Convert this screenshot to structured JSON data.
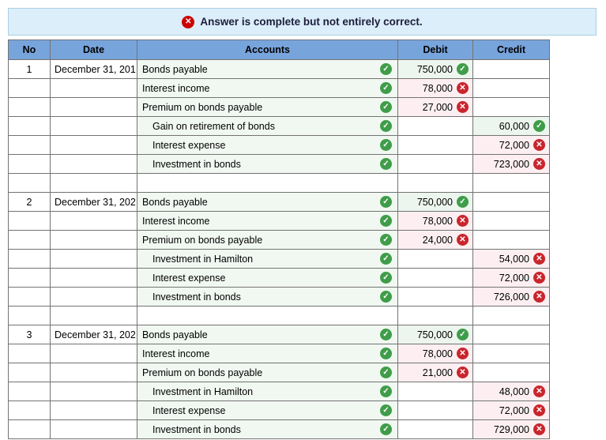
{
  "banner": {
    "text": "Answer is complete but not entirely correct."
  },
  "icons": {
    "correct": "✓",
    "incorrect": "✕"
  },
  "colors": {
    "banner_bg": "#dbeef9",
    "banner_border": "#a9d0e4",
    "banner_icon": "#cc0000",
    "header_bg": "#78a4dc",
    "account_bg": "#f1f8f2",
    "correct_bg": "#ecf5ee",
    "incorrect_bg": "#fdeff1",
    "correct_icon": "#3f9d49",
    "incorrect_icon": "#c9252d"
  },
  "table": {
    "headers": {
      "no": "No",
      "date": "Date",
      "accounts": "Accounts",
      "debit": "Debit",
      "credit": "Credit"
    },
    "rows": [
      {
        "no": "1",
        "date": "December 31, 201",
        "account": "Bonds payable",
        "indent": false,
        "account_status": "correct",
        "debit": "750,000",
        "debit_status": "correct",
        "credit": "",
        "credit_status": ""
      },
      {
        "no": "",
        "date": "",
        "account": "Interest income",
        "indent": false,
        "account_status": "correct",
        "debit": "78,000",
        "debit_status": "incorrect",
        "credit": "",
        "credit_status": ""
      },
      {
        "no": "",
        "date": "",
        "account": "Premium on bonds payable",
        "indent": false,
        "account_status": "correct",
        "debit": "27,000",
        "debit_status": "incorrect",
        "credit": "",
        "credit_status": ""
      },
      {
        "no": "",
        "date": "",
        "account": "Gain on retirement of bonds",
        "indent": true,
        "account_status": "correct",
        "debit": "",
        "debit_status": "",
        "credit": "60,000",
        "credit_status": "correct"
      },
      {
        "no": "",
        "date": "",
        "account": "Interest expense",
        "indent": true,
        "account_status": "correct",
        "debit": "",
        "debit_status": "",
        "credit": "72,000",
        "credit_status": "incorrect"
      },
      {
        "no": "",
        "date": "",
        "account": "Investment in bonds",
        "indent": true,
        "account_status": "correct",
        "debit": "",
        "debit_status": "",
        "credit": "723,000",
        "credit_status": "incorrect"
      },
      {
        "spacer": true
      },
      {
        "no": "2",
        "date": "December 31, 202",
        "account": "Bonds payable",
        "indent": false,
        "account_status": "correct",
        "debit": "750,000",
        "debit_status": "correct",
        "credit": "",
        "credit_status": ""
      },
      {
        "no": "",
        "date": "",
        "account": "Interest income",
        "indent": false,
        "account_status": "correct",
        "debit": "78,000",
        "debit_status": "incorrect",
        "credit": "",
        "credit_status": ""
      },
      {
        "no": "",
        "date": "",
        "account": "Premium on bonds payable",
        "indent": false,
        "account_status": "correct",
        "debit": "24,000",
        "debit_status": "incorrect",
        "credit": "",
        "credit_status": ""
      },
      {
        "no": "",
        "date": "",
        "account": "Investment in Hamilton",
        "indent": true,
        "account_status": "correct",
        "debit": "",
        "debit_status": "",
        "credit": "54,000",
        "credit_status": "incorrect"
      },
      {
        "no": "",
        "date": "",
        "account": "Interest expense",
        "indent": true,
        "account_status": "correct",
        "debit": "",
        "debit_status": "",
        "credit": "72,000",
        "credit_status": "incorrect"
      },
      {
        "no": "",
        "date": "",
        "account": "Investment in bonds",
        "indent": true,
        "account_status": "correct",
        "debit": "",
        "debit_status": "",
        "credit": "726,000",
        "credit_status": "incorrect"
      },
      {
        "spacer": true
      },
      {
        "no": "3",
        "date": "December 31, 202",
        "account": "Bonds payable",
        "indent": false,
        "account_status": "correct",
        "debit": "750,000",
        "debit_status": "correct",
        "credit": "",
        "credit_status": ""
      },
      {
        "no": "",
        "date": "",
        "account": "Interest income",
        "indent": false,
        "account_status": "correct",
        "debit": "78,000",
        "debit_status": "incorrect",
        "credit": "",
        "credit_status": ""
      },
      {
        "no": "",
        "date": "",
        "account": "Premium on bonds payable",
        "indent": false,
        "account_status": "correct",
        "debit": "21,000",
        "debit_status": "incorrect",
        "credit": "",
        "credit_status": ""
      },
      {
        "no": "",
        "date": "",
        "account": "Investment in Hamilton",
        "indent": true,
        "account_status": "correct",
        "debit": "",
        "debit_status": "",
        "credit": "48,000",
        "credit_status": "incorrect"
      },
      {
        "no": "",
        "date": "",
        "account": "Interest expense",
        "indent": true,
        "account_status": "correct",
        "debit": "",
        "debit_status": "",
        "credit": "72,000",
        "credit_status": "incorrect"
      },
      {
        "no": "",
        "date": "",
        "account": "Investment in bonds",
        "indent": true,
        "account_status": "correct",
        "debit": "",
        "debit_status": "",
        "credit": "729,000",
        "credit_status": "incorrect"
      }
    ]
  }
}
